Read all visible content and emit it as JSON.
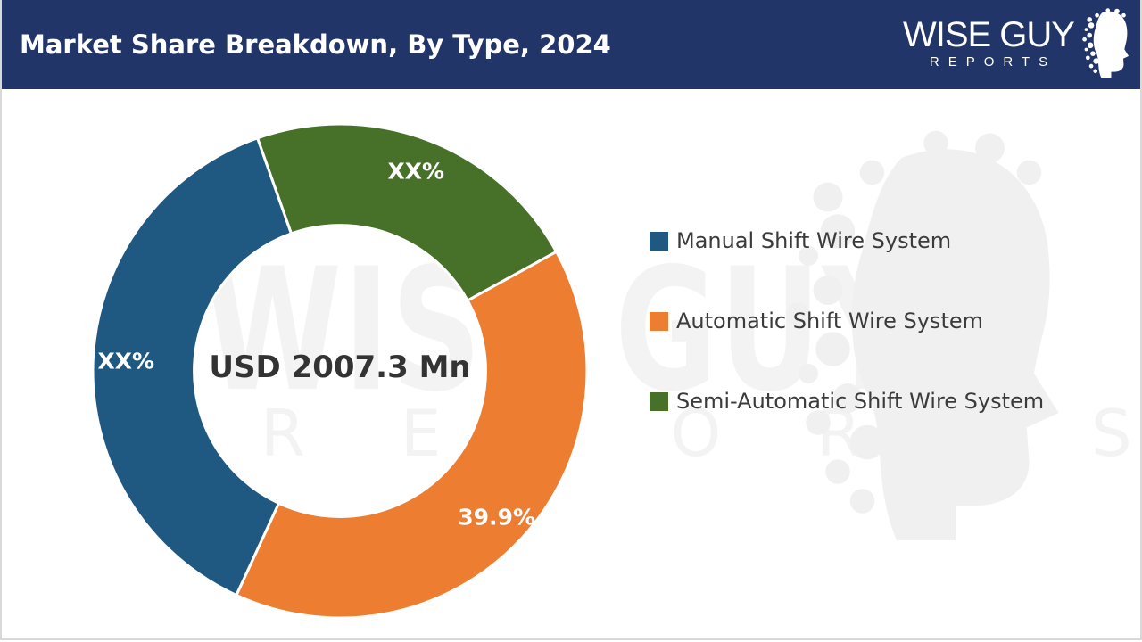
{
  "page": {
    "background": "#ffffff",
    "frame_border_color": "#d9d9d9"
  },
  "header": {
    "background": "#213569",
    "title": "Market Share Breakdown, By Type, 2024",
    "title_color": "#ffffff",
    "logo": {
      "line1": "WISE GUY",
      "line2": "REPORTS",
      "icon": "dotted-head-profile-icon",
      "color": "#ffffff"
    }
  },
  "watermark": {
    "line1": "WISE GUY",
    "line2": "R E P O R T S",
    "color": "#f3f3f3"
  },
  "chart_data": {
    "type": "pie",
    "subtype": "donut",
    "title": "Market Share Breakdown, By Type, 2024",
    "center_label": "USD 2007.3 Mn",
    "center_label_color": "#333333",
    "start_angle_deg": -19.5,
    "hole_ratio": 0.59,
    "legend_position": "right",
    "segments": [
      {
        "name": "Semi-Automatic Shift Wire System",
        "value_pct": 22.4,
        "shown_label": "XX%",
        "color": "#477029"
      },
      {
        "name": "Automatic Shift Wire System",
        "value_pct": 39.9,
        "shown_label": "39.9%",
        "color": "#ED7D31"
      },
      {
        "name": "Manual Shift Wire System",
        "value_pct": 37.7,
        "shown_label": "XX%",
        "color": "#1F5881"
      }
    ]
  },
  "legend": {
    "text_color": "#3b3b3b",
    "items": [
      {
        "label": "Manual Shift Wire System",
        "color": "#1F5881"
      },
      {
        "label": "Automatic Shift Wire System",
        "color": "#ED7D31"
      },
      {
        "label": "Semi-Automatic Shift Wire System",
        "color": "#477029"
      }
    ]
  }
}
